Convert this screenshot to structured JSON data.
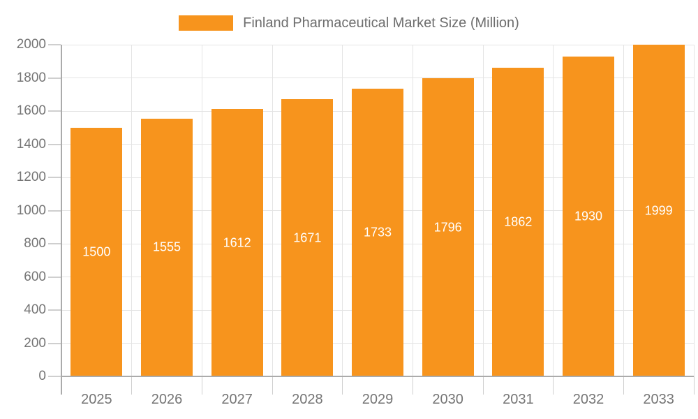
{
  "legend": {
    "label": "Finland Pharmaceutical Market Size (Million)"
  },
  "chart_data": {
    "type": "bar",
    "title": "Finland Pharmaceutical Market Size (Million)",
    "categories": [
      "2025",
      "2026",
      "2027",
      "2028",
      "2029",
      "2030",
      "2031",
      "2032",
      "2033"
    ],
    "values": [
      1500,
      1555,
      1612,
      1671,
      1733,
      1796,
      1862,
      1930,
      1999
    ],
    "series": [
      {
        "name": "Finland Pharmaceutical Market Size (Million)",
        "values": [
          1500,
          1555,
          1612,
          1671,
          1733,
          1796,
          1862,
          1930,
          1999
        ]
      }
    ],
    "xlabel": "",
    "ylabel": "",
    "ylim": [
      0,
      2000
    ],
    "ytick_step": 200,
    "ytick_labels": [
      "0",
      "200",
      "400",
      "600",
      "800",
      "1000",
      "1200",
      "1400",
      "1600",
      "1800",
      "2000"
    ],
    "grid": "on",
    "legend_position": "top-center",
    "value_labels": "inside-center-white",
    "colors": {
      "bar": "#f7941d",
      "bar_value_text": "#ffffff",
      "axis_line": "#ababab",
      "grid_line": "#e4e4e4",
      "tick_mark": "#cfcfcf",
      "tick_label_text": "#757575",
      "legend_text": "#6e6e6e"
    }
  }
}
